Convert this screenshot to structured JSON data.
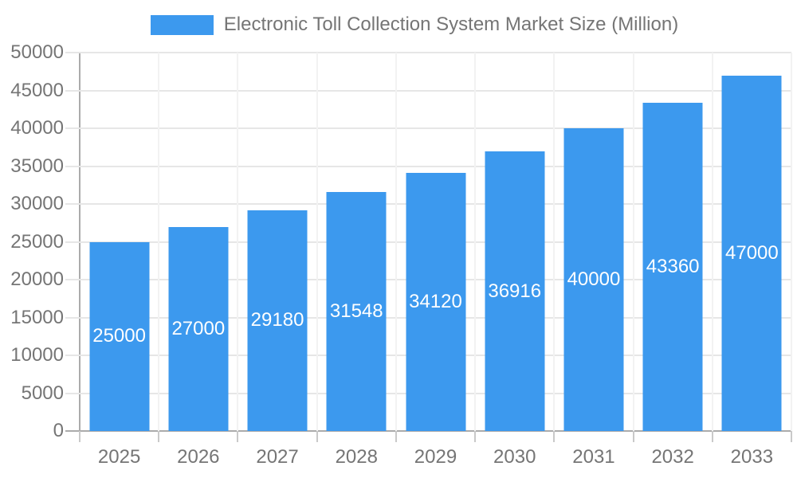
{
  "chart_data": {
    "type": "bar",
    "title": "Electronic Toll Collection System Market Size (Million)",
    "legend": {
      "label": "Electronic Toll Collection System Market Size (Million)",
      "position": "top"
    },
    "categories": [
      "2025",
      "2026",
      "2027",
      "2028",
      "2029",
      "2030",
      "2031",
      "2032",
      "2033"
    ],
    "values": [
      25000,
      27000,
      29180,
      31548,
      34120,
      36916,
      40000,
      43360,
      47000
    ],
    "value_labels": [
      "25000",
      "27000",
      "29180",
      "31548",
      "34120",
      "36916",
      "40000",
      "43360",
      "47000"
    ],
    "xlabel": "",
    "ylabel": "",
    "ylim": [
      0,
      50000
    ],
    "ytick_step": 5000,
    "yticks": [
      0,
      5000,
      10000,
      15000,
      20000,
      25000,
      30000,
      35000,
      40000,
      45000,
      50000
    ],
    "grid": true,
    "value_labels_position": "center-of-bar",
    "colors": {
      "bar": "#3c99ee",
      "bar_label": "#ffffff",
      "axis_line": "#ababab",
      "grid_h": "#e6e6e6",
      "grid_v": "#f2f2f2",
      "tick_mark": "#c9c9c9",
      "tick_label": "#757575",
      "legend_text": "#757575",
      "background": "#ffffff"
    }
  }
}
